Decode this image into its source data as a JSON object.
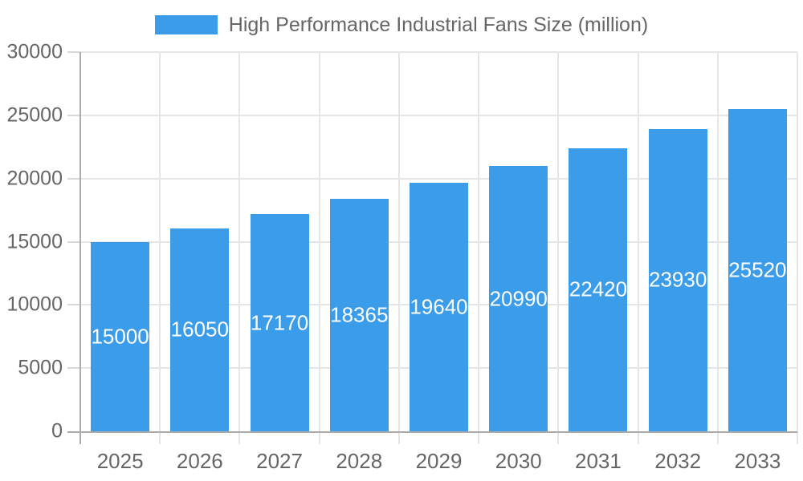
{
  "legend": {
    "label": "High Performance Industrial Fans Size (million)"
  },
  "chart_data": {
    "type": "bar",
    "title": "High Performance Industrial Fans Size (million)",
    "categories": [
      "2025",
      "2026",
      "2027",
      "2028",
      "2029",
      "2030",
      "2031",
      "2032",
      "2033"
    ],
    "values": [
      15000,
      16050,
      17170,
      18365,
      19640,
      20990,
      22420,
      23930,
      25520
    ],
    "value_labels": [
      "15000",
      "16050",
      "17170",
      "18365",
      "19640",
      "20990",
      "22420",
      "23930",
      "25520"
    ],
    "xlabel": "",
    "ylabel": "",
    "ylim": [
      0,
      30000
    ],
    "ytick_step": 5000,
    "yticks": [
      0,
      5000,
      10000,
      15000,
      20000,
      25000,
      30000
    ],
    "ytick_labels": [
      "0",
      "5000",
      "10000",
      "15000",
      "20000",
      "25000",
      "30000"
    ],
    "grid": true,
    "legend_position": "top",
    "colors": {
      "bar": "#3B9CEA",
      "bar_label_text": "#FFFFFF",
      "axis_text": "#666666",
      "grid_line": "#E5E5E5",
      "tick_line": "#D8D8D8",
      "axis_line": "#ABABAB",
      "background": "#FFFFFF"
    }
  }
}
